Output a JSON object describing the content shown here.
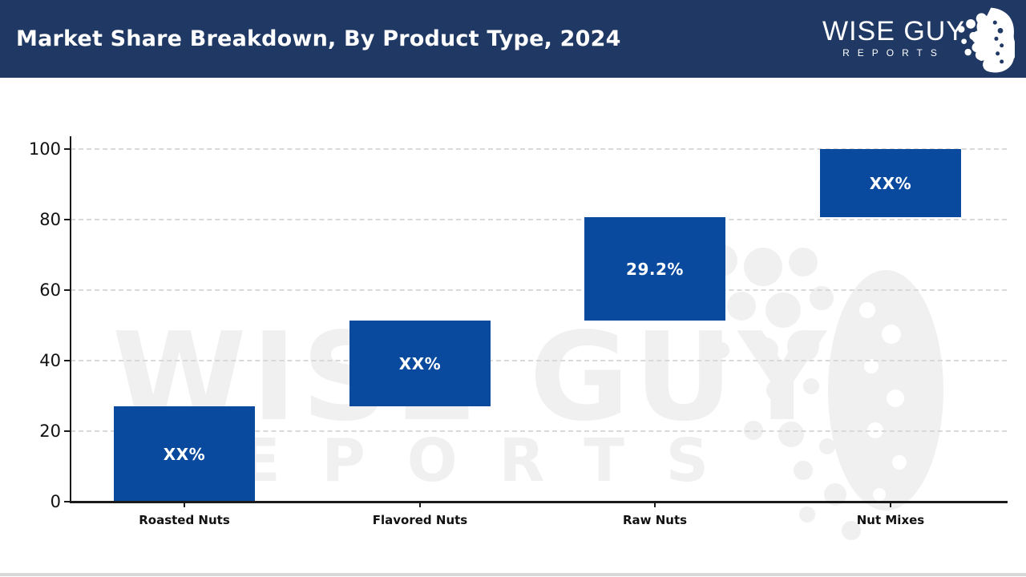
{
  "header": {
    "title": "Market Share Breakdown, By Product Type, 2024",
    "logo": {
      "line1": "WISE GUY",
      "line2": "REPORTS"
    }
  },
  "watermark": {
    "line1": "WISE GUY",
    "line2": "REPORTS"
  },
  "chart_data": {
    "type": "bar",
    "subtype": "floating-waterfall",
    "title": "Market Share Breakdown, By Product Type, 2024",
    "xlabel": "",
    "ylabel": "",
    "categories": [
      "Roasted Nuts",
      "Flavored Nuts",
      "Raw Nuts",
      "Nut Mixes"
    ],
    "bars": [
      {
        "category": "Roasted Nuts",
        "start": 0,
        "end": 27,
        "label": "XX%"
      },
      {
        "category": "Flavored Nuts",
        "start": 27,
        "end": 51.4,
        "label": "XX%"
      },
      {
        "category": "Raw Nuts",
        "start": 51.4,
        "end": 80.6,
        "label": "29.2%"
      },
      {
        "category": "Nut Mixes",
        "start": 80.6,
        "end": 100,
        "label": "XX%"
      }
    ],
    "yticks": [
      0,
      20,
      40,
      60,
      80,
      100
    ],
    "ylim": [
      0,
      104
    ],
    "grid": true,
    "legend": false,
    "bar_color": "#0a4a9e",
    "bar_label_color": "#ffffff"
  },
  "colors": {
    "header_bg": "#1f3864",
    "bar": "#0a4a9e",
    "gridline": "#d9d9d9",
    "axis": "#1a1a1a",
    "watermark": "#f0f0f0"
  }
}
